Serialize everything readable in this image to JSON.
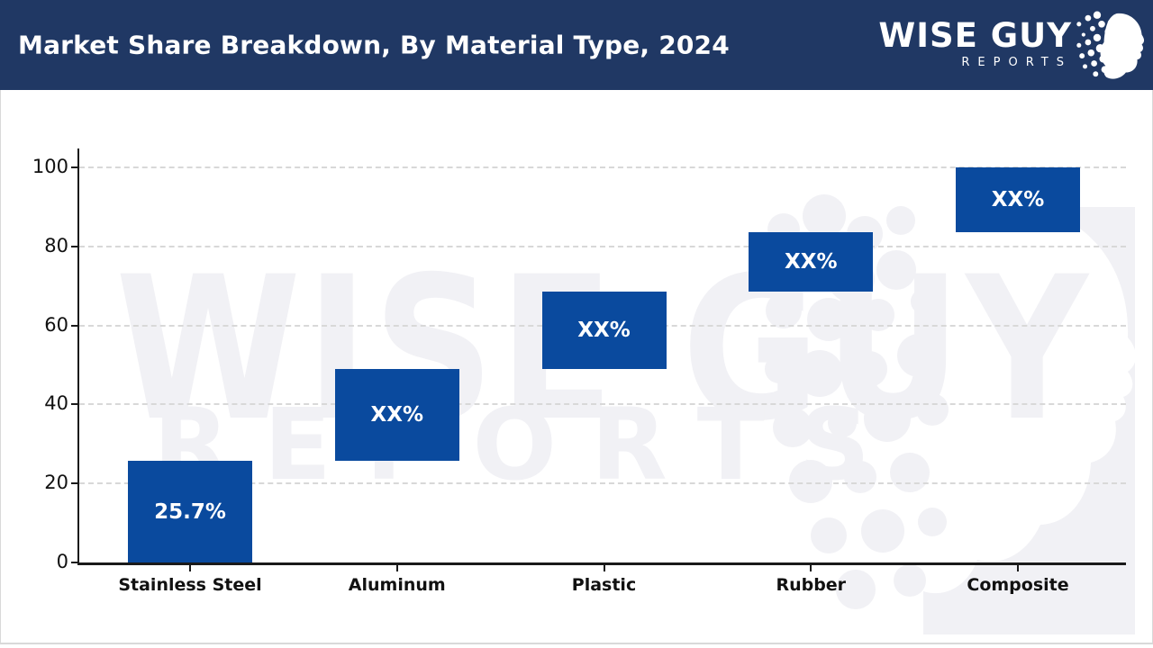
{
  "header": {
    "title": "Market Share Breakdown, By Material Type, 2024",
    "logo": {
      "line1": "WISE GUY",
      "line2": "REPORTS"
    }
  },
  "watermark": {
    "line1": "WISE GUY",
    "line2": "REPORTS"
  },
  "chart_data": {
    "type": "bar",
    "variant": "waterfall",
    "title": "Market Share Breakdown, By Material Type, 2024",
    "categories": [
      "Stainless Steel",
      "Aluminum",
      "Plastic",
      "Rubber",
      "Composite"
    ],
    "segments": [
      {
        "category": "Stainless Steel",
        "start": 0,
        "end": 25.7,
        "value": 25.7,
        "label": "25.7%"
      },
      {
        "category": "Aluminum",
        "start": 25.7,
        "end": 49.0,
        "value": 23.3,
        "label": "XX%"
      },
      {
        "category": "Plastic",
        "start": 49.0,
        "end": 68.5,
        "value": 19.5,
        "label": "XX%"
      },
      {
        "category": "Rubber",
        "start": 68.5,
        "end": 83.5,
        "value": 15.0,
        "label": "XX%"
      },
      {
        "category": "Composite",
        "start": 83.5,
        "end": 100.0,
        "value": 16.5,
        "label": "XX%"
      }
    ],
    "xlabel": "",
    "ylabel": "",
    "ylim": [
      0,
      100
    ],
    "yticks": [
      0,
      20,
      40,
      60,
      80,
      100
    ],
    "grid": "horizontal-dashed",
    "legend": "none",
    "bar_color": "#0a4a9e",
    "bar_label_color": "#ffffff"
  },
  "colors": {
    "header_bg": "#203864",
    "bar": "#0a4a9e",
    "axis": "#1a1a1a",
    "grid": "#d8d8d8",
    "watermark": "#f1f1f5"
  }
}
